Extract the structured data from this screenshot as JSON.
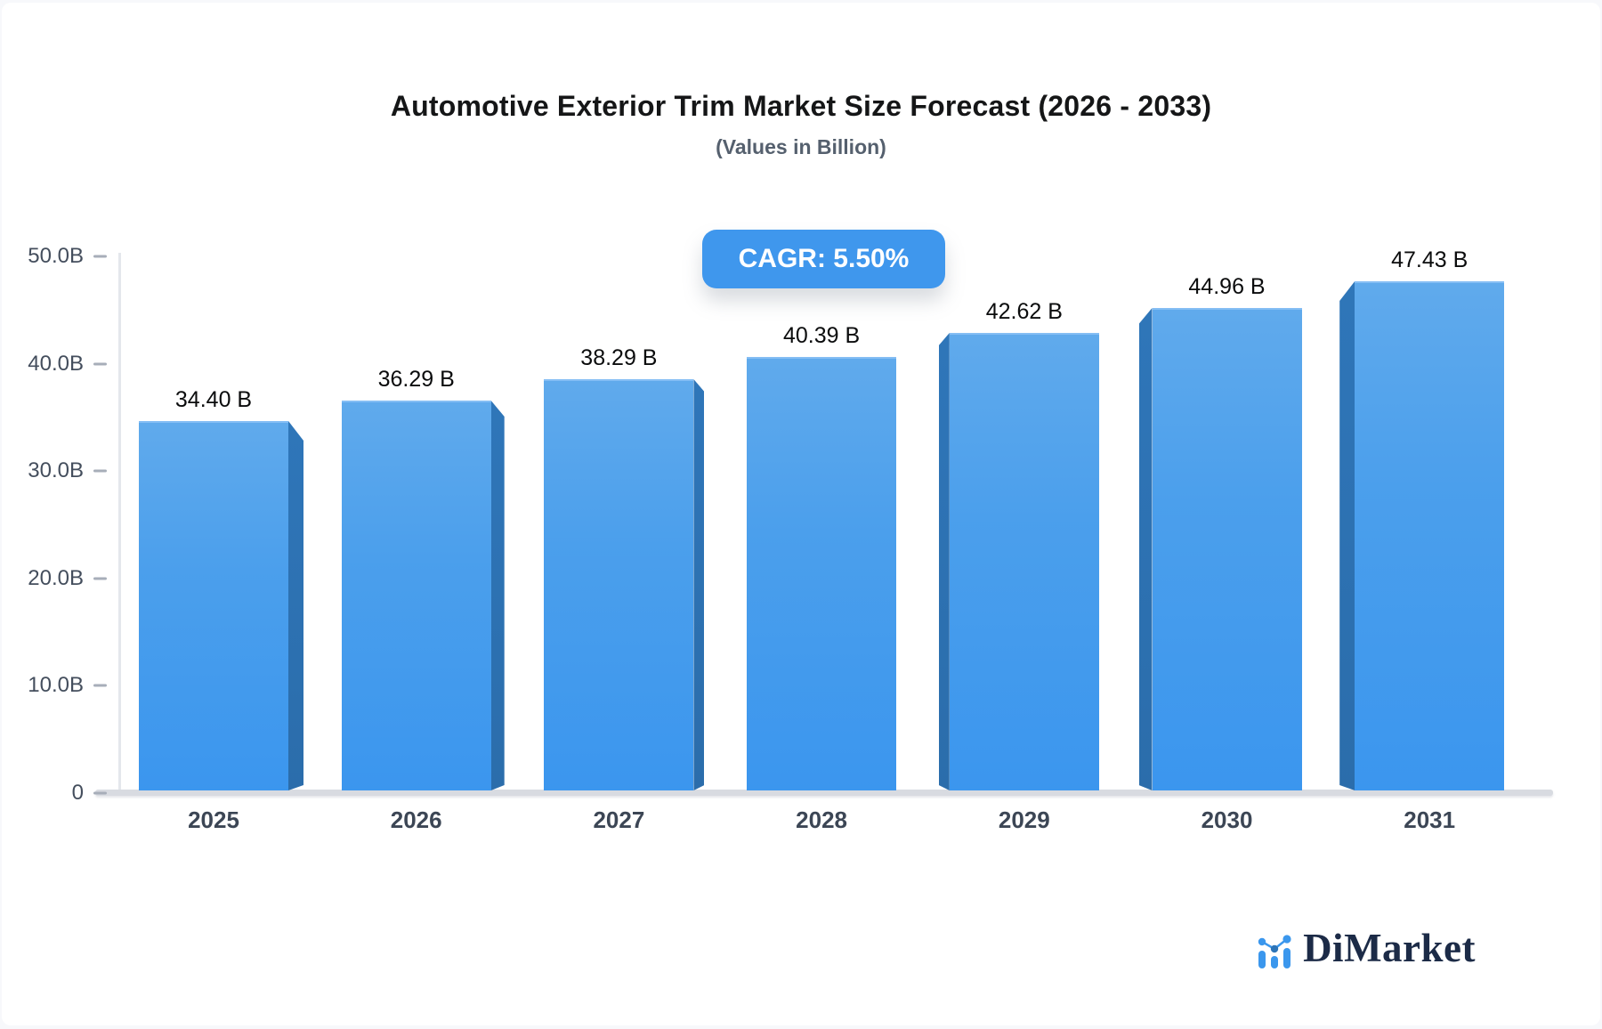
{
  "header": {
    "title": "Automotive Exterior Trim Market Size Forecast (2026 - 2033)",
    "subtitle": "(Values in Billion)"
  },
  "badge": {
    "label": "CAGR: 5.50%",
    "background": "#3f97ed",
    "text_color": "#ffffff"
  },
  "chart_data": {
    "type": "bar",
    "title": "Automotive Exterior Trim Market Size Forecast (2026 - 2033)",
    "subtitle": "(Values in Billion)",
    "categories": [
      "2025",
      "2026",
      "2027",
      "2028",
      "2029",
      "2030",
      "2031"
    ],
    "values": [
      34.4,
      36.29,
      38.29,
      40.39,
      42.62,
      44.96,
      47.43
    ],
    "value_labels": [
      "34.40 B",
      "36.29 B",
      "38.29 B",
      "40.39 B",
      "42.62 B",
      "44.96 B",
      "47.43 B"
    ],
    "ylabel": "",
    "ylim": [
      0,
      50
    ],
    "ytick_values": [
      0,
      10,
      20,
      30,
      40,
      50
    ],
    "ytick_labels": [
      "0",
      "10.0B",
      "20.0B",
      "30.0B",
      "40.0B",
      "50.0B"
    ],
    "grid": false,
    "legend": false,
    "bar_color_top": "#60aaec",
    "bar_color_bottom": "#3b96ee",
    "bar_side_color": "#2e74b7",
    "style": "3d-perspective-bars"
  },
  "logo": {
    "text": "DiMarket",
    "icon": "mini-bar-chart-icon",
    "text_color": "#1c2b47",
    "accent_color": "#3b97ed"
  }
}
